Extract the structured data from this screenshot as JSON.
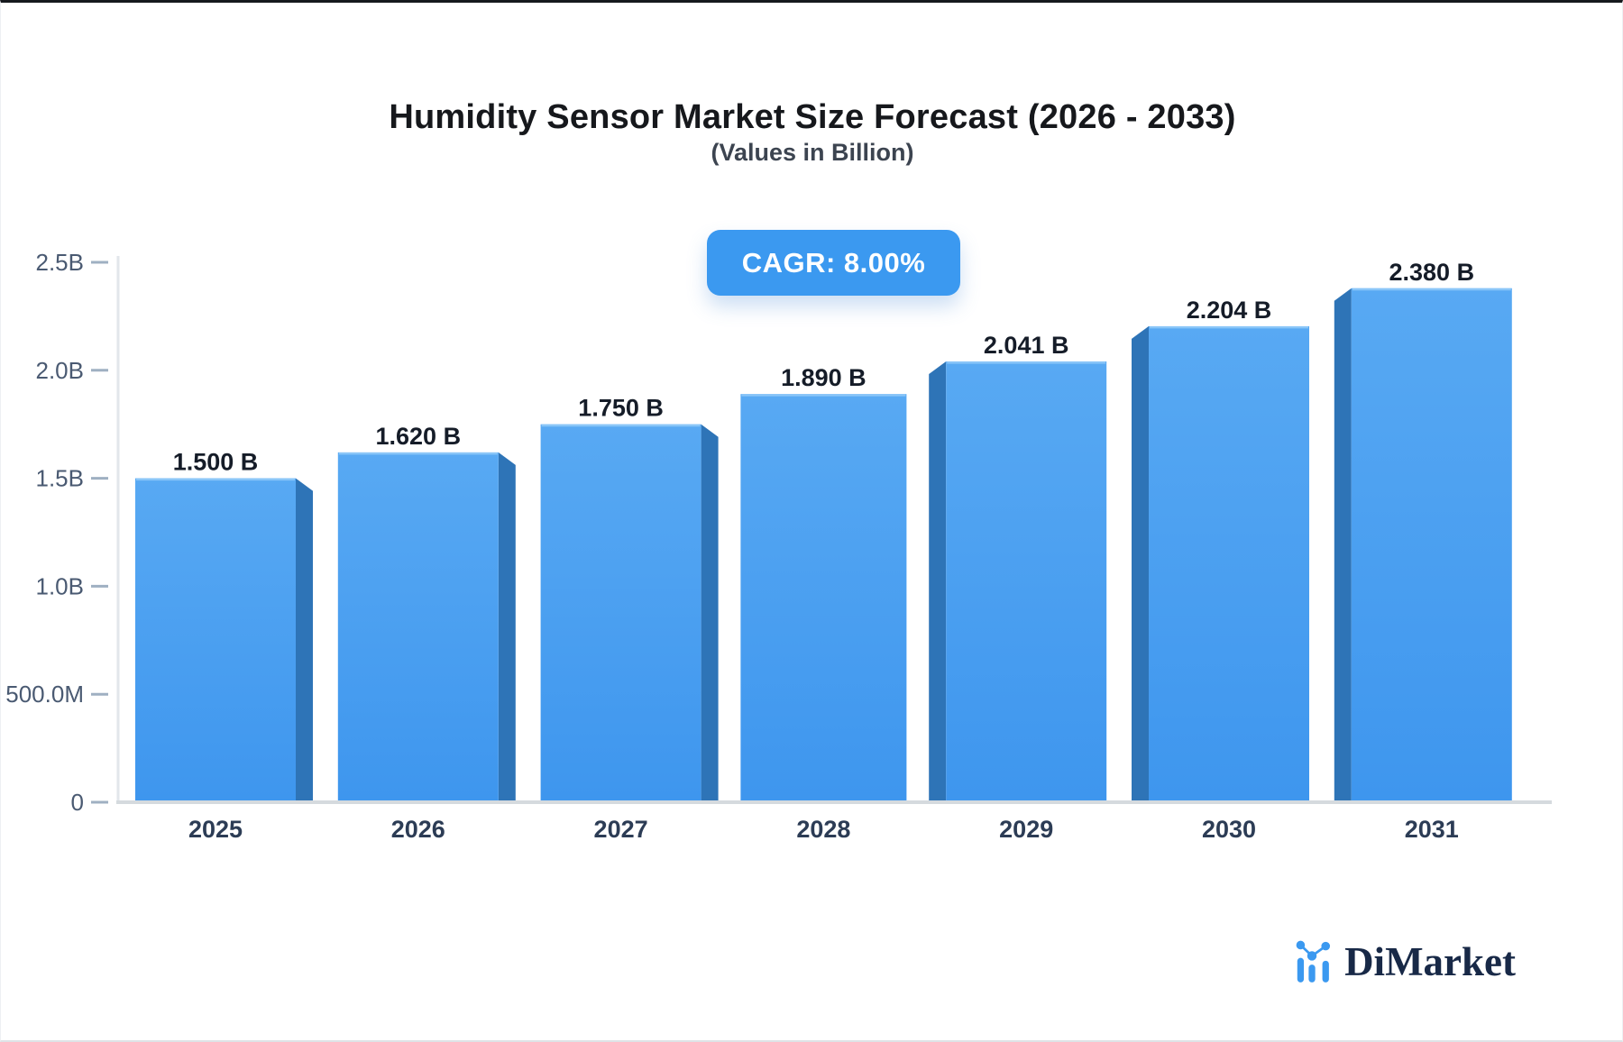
{
  "title": "Humidity Sensor Market Size Forecast (2026 - 2033)",
  "subtitle": "(Values in Billion)",
  "badge": {
    "label": "CAGR: 8.00%",
    "color": "#3b99f0"
  },
  "logo": {
    "text": "DiMarket",
    "icon": "bar-line-chart-icon",
    "icon_color": "#3b99f0",
    "text_color": "#182947"
  },
  "chart_data": {
    "type": "bar",
    "title": "Humidity Sensor Market Size Forecast (2026 - 2033)",
    "subtitle": "(Values in Billion)",
    "annotation": "CAGR: 8.00%",
    "categories": [
      "2025",
      "2026",
      "2027",
      "2028",
      "2029",
      "2030",
      "2031"
    ],
    "values": [
      1.5,
      1.62,
      1.75,
      1.89,
      2.041,
      2.204,
      2.38
    ],
    "bar_labels": [
      "1.500 B",
      "1.620 B",
      "1.750 B",
      "1.890 B",
      "2.041 B",
      "2.204 B",
      "2.380 B"
    ],
    "unit": "Billion",
    "xlabel": "",
    "ylabel": "",
    "ylim": [
      0,
      2.5
    ],
    "y_ticks": [
      {
        "label": "0",
        "value": 0.0
      },
      {
        "label": "500.0M",
        "value": 0.5
      },
      {
        "label": "1.0B",
        "value": 1.0
      },
      {
        "label": "1.5B",
        "value": 1.5
      },
      {
        "label": "2.0B",
        "value": 2.0
      },
      {
        "label": "2.5B",
        "value": 2.5
      }
    ],
    "grid": false,
    "legend": false,
    "bar_color_top": "#58a9f3",
    "bar_color_bottom": "#3e96ee",
    "bar_side_color": "#2e74b7",
    "bar_top_highlight": "#8ac6f8",
    "axis_line_color": "#d5dade",
    "tick_color": "#9fb0c2"
  }
}
